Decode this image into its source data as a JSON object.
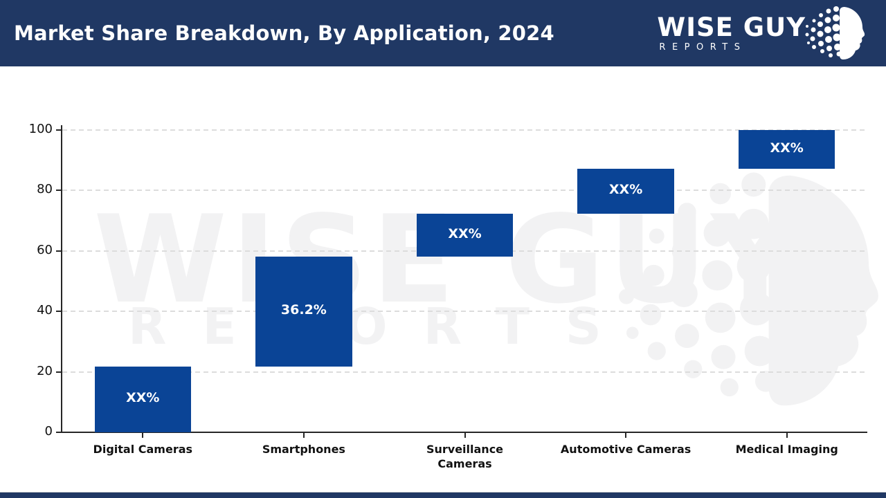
{
  "header": {
    "title": "Market Share Breakdown, By Application, 2024",
    "brand": {
      "line1": "WISE GUY",
      "line2": "REPORTS"
    }
  },
  "watermark": {
    "line1": "WISE GUY",
    "line2": "REPORTS"
  },
  "colors": {
    "header_bg": "#203864",
    "footer_bg": "#203864",
    "bar": "#0a4496",
    "bar_label": "#ffffff",
    "grid": "#dcdcdc",
    "axis": "#262626",
    "watermark": "#f2f2f3"
  },
  "chart_data": {
    "type": "bar",
    "variant": "waterfall (floating segment bars)",
    "title": "Market Share Breakdown, By Application, 2024",
    "categories": [
      "Digital Cameras",
      "Smartphones",
      "Surveillance Cameras",
      "Automotive Cameras",
      "Medical Imaging"
    ],
    "category_label_lines": [
      [
        "Digital Cameras"
      ],
      [
        "Smartphones"
      ],
      [
        "Surveillance",
        "Cameras"
      ],
      [
        "Automotive Cameras"
      ],
      [
        "Medical Imaging"
      ]
    ],
    "segments": [
      {
        "category": "Digital Cameras",
        "start": 0,
        "end": 21.8,
        "value": 21.8,
        "label": "XX%"
      },
      {
        "category": "Smartphones",
        "start": 21.8,
        "end": 58.0,
        "value": 36.2,
        "label": "36.2%"
      },
      {
        "category": "Surveillance Cameras",
        "start": 58.0,
        "end": 72.3,
        "value": 14.3,
        "label": "XX%"
      },
      {
        "category": "Automotive Cameras",
        "start": 72.3,
        "end": 87.1,
        "value": 14.8,
        "label": "XX%"
      },
      {
        "category": "Medical Imaging",
        "start": 87.1,
        "end": 100.0,
        "value": 12.9,
        "label": "XX%"
      }
    ],
    "xlabel": "",
    "ylabel": "",
    "ylim": [
      0,
      100
    ],
    "yticks": [
      0,
      20,
      40,
      60,
      80,
      100
    ],
    "grid": "horizontal dashed",
    "legend": "none",
    "bar_color": "#0a4496",
    "label_color": "#ffffff"
  }
}
